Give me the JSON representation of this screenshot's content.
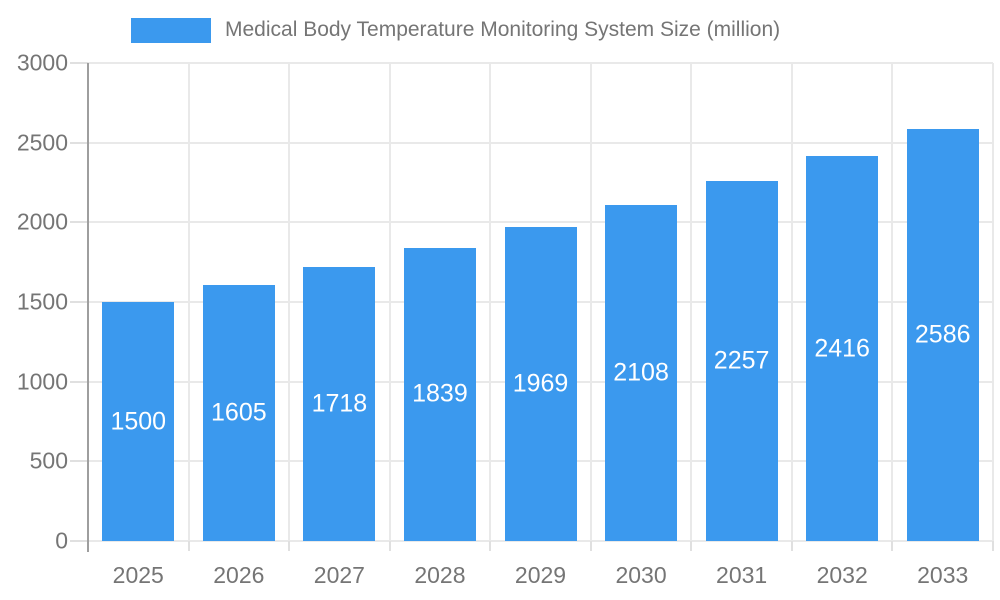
{
  "legend": {
    "label": "Medical Body Temperature Monitoring System Size (million)"
  },
  "colors": {
    "bar": "#3B99EE",
    "axis_line": "#9e9e9e",
    "gridline": "#e9e9e9",
    "tick": "#e0e0e0",
    "axis_text": "#757575",
    "bar_label_text": "#ffffff",
    "background": "#ffffff"
  },
  "chart_data": {
    "type": "bar",
    "title": "Medical Body Temperature Monitoring System Size (million)",
    "categories": [
      "2025",
      "2026",
      "2027",
      "2028",
      "2029",
      "2030",
      "2031",
      "2032",
      "2033"
    ],
    "series": [
      {
        "name": "Medical Body Temperature Monitoring System Size (million)",
        "values": [
          1500,
          1605,
          1718,
          1839,
          1969,
          2108,
          2257,
          2416,
          2586
        ]
      }
    ],
    "value_labels": [
      1500,
      1605,
      1718,
      1839,
      1969,
      2108,
      2257,
      2416,
      2586
    ],
    "value_label_position": "inside-center",
    "xlabel": "",
    "ylabel": "",
    "ylim": [
      0,
      3000
    ],
    "ytick_step": 500,
    "yticks": [
      "0",
      "500",
      "1000",
      "1500",
      "2000",
      "2500",
      "3000"
    ],
    "grid": true,
    "legend_position": "top"
  }
}
